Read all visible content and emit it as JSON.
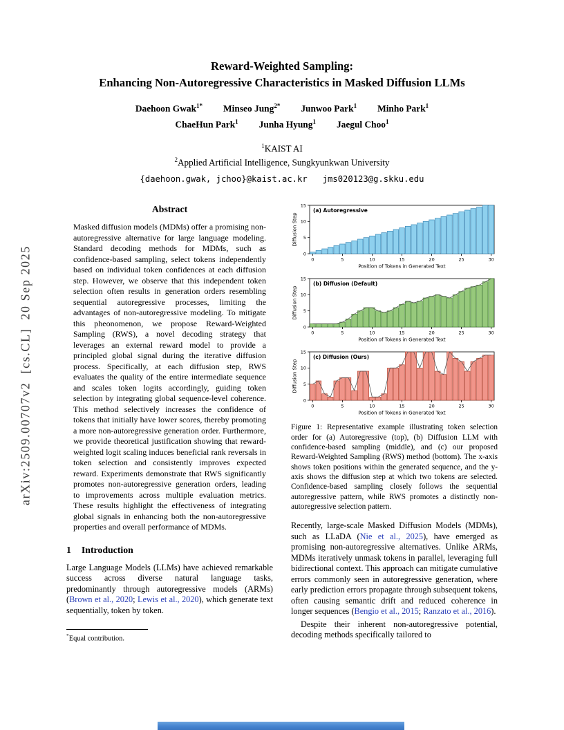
{
  "colors": {
    "citation_link": "#2a3fb8",
    "bottom_strip_blue": "#4583cf",
    "chart_a_fill": "#8ed0ee",
    "chart_b_fill": "#97c97c",
    "chart_c_fill": "#f0958a"
  },
  "sidebar": {
    "arxiv_label": "arXiv:2509.00707v2  [cs.CL]  20 Sep 2025"
  },
  "header": {
    "title_line1": "Reward-Weighted Sampling:",
    "title_line2": "Enhancing Non-Autoregressive Characteristics in Masked Diffusion LLMs",
    "authors_line1": [
      {
        "name": "Daehoon Gwak",
        "sup": "1*"
      },
      {
        "name": "Minseo Jung",
        "sup": "2*"
      },
      {
        "name": "Junwoo Park",
        "sup": "1"
      },
      {
        "name": "Minho Park",
        "sup": "1"
      }
    ],
    "authors_line2": [
      {
        "name": "ChaeHun Park",
        "sup": "1"
      },
      {
        "name": "Junha Hyung",
        "sup": "1"
      },
      {
        "name": "Jaegul Choo",
        "sup": "1"
      }
    ],
    "affil1_sup": "1",
    "affil1": "KAIST AI",
    "affil2_sup": "2",
    "affil2": "Applied Artificial Intelligence, Sungkyunkwan University",
    "emails": "{daehoon.gwak, jchoo}@kaist.ac.kr   jms020123@g.skku.edu"
  },
  "abstract": {
    "heading": "Abstract",
    "body": "Masked diffusion models (MDMs) offer a promising non-autoregressive alternative for large language modeling. Standard decoding methods for MDMs, such as confidence-based sampling, select tokens independently based on individual token confidences at each diffusion step. However, we observe that this independent token selection often results in generation orders resembling sequential autoregressive processes, limiting the advantages of non-autoregressive modeling. To mitigate this pheonomenon, we propose Reward-Weighted Sampling (RWS), a novel decoding strategy that leverages an external reward model to provide a principled global signal during the iterative diffusion process. Specifically, at each diffusion step, RWS evaluates the quality of the entire intermediate sequence and scales token logits accordingly, guiding token selection by integrating global sequence-level coherence. This method selectively increases the confidence of tokens that initially have lower scores, thereby promoting a more non-autoregressive generation order. Furthermore, we provide theoretical justification showing that reward-weighted logit scaling induces beneficial rank reversals in token selection and consistently improves expected reward. Experiments demonstrate that RWS significantly promotes non-autoregressive generation orders, leading to improvements across multiple evaluation metrics. These results highlight the effectiveness of integrating global signals in enhancing both the non-autoregressive properties and overall performance of MDMs."
  },
  "intro": {
    "heading_num": "1",
    "heading_text": "Introduction",
    "para1": [
      {
        "t": "Large Language Models (LLMs) have achieved remarkable success across diverse natural language tasks, predominantly through autoregressive models (ARMs) ("
      },
      {
        "t": "Brown et al., 2020",
        "c": true
      },
      {
        "t": "; "
      },
      {
        "t": "Lewis et al., 2020",
        "c": true
      },
      {
        "t": "), which generate text sequentially, token by token."
      }
    ]
  },
  "footnote": {
    "marker": "*",
    "text": "Equal contribution."
  },
  "figure": {
    "caption": "Figure 1: Representative example illustrating token selection order for (a) Autoregressive (top), (b) Diffusion LLM with confidence-based sampling (middle), and (c) our proposed Reward-Weighted Sampling (RWS) method (bottom). The x-axis shows token positions within the generated sequence, and the y-axis shows the diffusion step at which two tokens are selected. Confidence-based sampling closely follows the sequential autoregressive pattern, while RWS promotes a distinctly non-autoregressive selection pattern."
  },
  "right_column": {
    "para1": [
      {
        "t": "Recently, large-scale Masked Diffusion Models (MDMs), such as LLaDA ("
      },
      {
        "t": "Nie et al., 2025",
        "c": true
      },
      {
        "t": "), have emerged as promising non-autoregressive alternatives. Unlike ARMs, MDMs iteratively unmask tokens in parallel, leveraging full bidirectional context. This approach can mitigate cumulative errors commonly seen in autoregressive generation, where early prediction errors propagate through subsequent tokens, often causing semantic drift and reduced coherence in longer sequences ("
      },
      {
        "t": "Bengio et al., 2015",
        "c": true
      },
      {
        "t": "; "
      },
      {
        "t": "Ranzato et al., 2016",
        "c": true
      },
      {
        "t": ")."
      }
    ],
    "para2": [
      {
        "t": "Despite their inherent non-autoregressive potential, decoding methods specifically tailored to"
      }
    ]
  },
  "chart_data": [
    {
      "id": "chart-autoregressive",
      "type": "bar",
      "title": "(a) Autoregressive",
      "xlabel": "Position of Tokens in Generated Text",
      "ylabel": "Diffusion Step",
      "ylim": [
        0,
        15
      ],
      "yticks": [
        0,
        5,
        10,
        15
      ],
      "xticks": [
        0,
        5,
        10,
        15,
        20,
        25,
        30
      ],
      "fill": "#8ed0ee",
      "stroke": "#3d8ab8",
      "envelope": false,
      "x": [
        0,
        1,
        2,
        3,
        4,
        5,
        6,
        7,
        8,
        9,
        10,
        11,
        12,
        13,
        14,
        15,
        16,
        17,
        18,
        19,
        20,
        21,
        22,
        23,
        24,
        25,
        26,
        27,
        28,
        29,
        30
      ],
      "values": [
        0.5,
        1,
        1.5,
        2,
        2.5,
        3,
        3.5,
        4,
        4.5,
        5,
        5.5,
        6,
        6.5,
        7,
        7.5,
        8,
        8.5,
        9,
        9.5,
        10,
        10.5,
        11,
        11.5,
        12,
        12.5,
        13,
        13.5,
        14,
        14.5,
        15,
        15
      ]
    },
    {
      "id": "chart-diffusion-default",
      "type": "bar",
      "title": "(b) Diffusion (Default)",
      "xlabel": "Position of Tokens in Generated Text",
      "ylabel": "Diffusion Step",
      "ylim": [
        0,
        15
      ],
      "yticks": [
        0,
        5,
        10,
        15
      ],
      "xticks": [
        0,
        5,
        10,
        15,
        20,
        25,
        30
      ],
      "fill": "#97c97c",
      "stroke": "#4e8a3c",
      "envelope": true,
      "x": [
        0,
        1,
        2,
        3,
        4,
        5,
        6,
        7,
        8,
        9,
        10,
        11,
        12,
        13,
        14,
        15,
        16,
        17,
        18,
        19,
        20,
        21,
        22,
        23,
        24,
        25,
        26,
        27,
        28,
        29,
        30
      ],
      "values": [
        1,
        1,
        1,
        1,
        1,
        1.5,
        2.5,
        4,
        5,
        6,
        6,
        5,
        4.5,
        5,
        6,
        7,
        8,
        7.5,
        8,
        9,
        9.5,
        10,
        9.5,
        9,
        10,
        11,
        12,
        12.5,
        13,
        14,
        15
      ]
    },
    {
      "id": "chart-diffusion-ours",
      "type": "bar",
      "title": "(c) Diffusion (Ours)",
      "xlabel": "Position of Tokens in Generated Text",
      "ylabel": "Diffusion Step",
      "ylim": [
        0,
        15
      ],
      "yticks": [
        0,
        5,
        10,
        15
      ],
      "xticks": [
        0,
        5,
        10,
        15,
        20,
        25,
        30
      ],
      "fill": "#f0958a",
      "stroke": "#b94a38",
      "envelope": true,
      "x": [
        0,
        1,
        2,
        3,
        4,
        5,
        6,
        7,
        8,
        9,
        10,
        11,
        12,
        13,
        14,
        15,
        16,
        17,
        18,
        19,
        20,
        21,
        22,
        23,
        24,
        25,
        26,
        27,
        28,
        29,
        30
      ],
      "values": [
        5,
        6,
        2,
        1,
        6,
        7,
        7,
        3,
        9,
        9,
        1,
        1,
        2,
        10,
        10,
        11,
        15,
        15,
        10,
        15,
        15,
        9,
        8,
        15,
        13,
        12,
        9,
        12,
        13,
        14,
        14
      ]
    }
  ]
}
